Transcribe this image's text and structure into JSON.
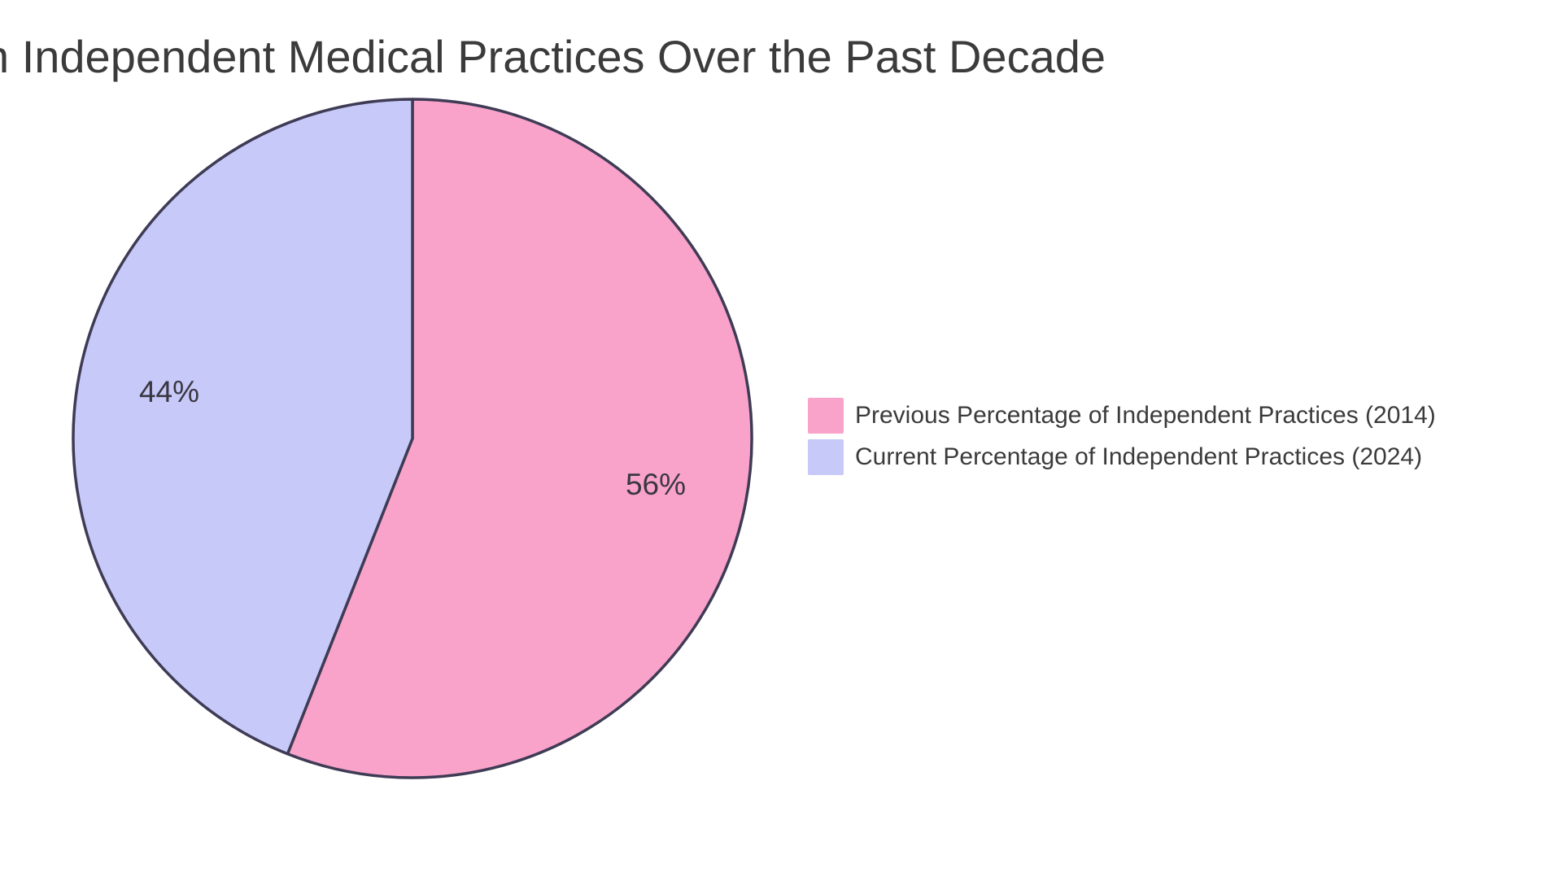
{
  "chart_data": {
    "type": "pie",
    "title": "n Independent Medical Practices Over the Past Decade",
    "background": "#FFFFFF",
    "outline_color": "#3E3B55",
    "outline_width": 3.5,
    "title_color": "#3B3B3B",
    "label_color": "#3A3742",
    "legend_text_color": "#3B3B3B",
    "start_angle_deg": -90,
    "direction": "clockwise",
    "legend_position": "right",
    "slices": [
      {
        "label": "Previous Percentage of Independent Practices (2014)",
        "value": 56,
        "display": "56%",
        "color": "#F9A2CA"
      },
      {
        "label": "Current Percentage of Independent Practices (2024)",
        "value": 44,
        "display": "44%",
        "color": "#C7C9F8"
      }
    ]
  }
}
